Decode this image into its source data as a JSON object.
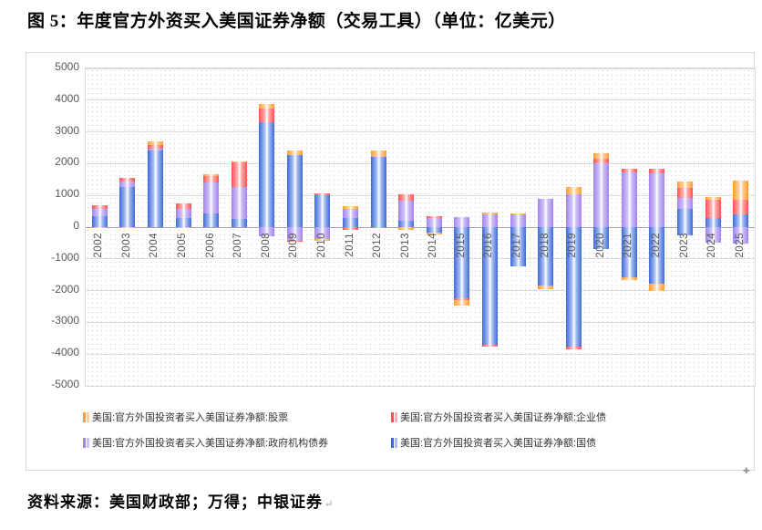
{
  "title": "图 5：年度官方外资买入美国证券净额（交易工具）（单位：亿美元）",
  "source": "资料来源：美国财政部；万得；中银证券",
  "source_mark": "↵",
  "corner_handle_glyph": "✚",
  "chart_data": {
    "type": "bar",
    "stacked": true,
    "unit": "亿美元",
    "title": "",
    "xlabel": "",
    "ylabel": "",
    "ylim": [
      -5000,
      5000
    ],
    "yticks": [
      5000,
      4000,
      3000,
      2000,
      1000,
      0,
      -1000,
      -2000,
      -3000,
      -4000,
      -5000
    ],
    "grid": true,
    "legend_position": "bottom",
    "categories": [
      2002,
      2003,
      2004,
      2005,
      2006,
      2007,
      2008,
      2009,
      2010,
      2011,
      2012,
      2013,
      2014,
      2015,
      2016,
      2017,
      2018,
      2019,
      2020,
      2021,
      2022,
      2023,
      2024,
      2025
    ],
    "series": [
      {
        "name": "美国:官方外国投资者买入美国证券净额:股票",
        "key": "equity",
        "color": "#FF9E2C",
        "light": "#FFD09A",
        "values": [
          -20,
          -20,
          120,
          -20,
          60,
          30,
          145,
          145,
          -50,
          80,
          210,
          -100,
          -70,
          -180,
          70,
          20,
          -115,
          215,
          170,
          -95,
          -220,
          220,
          95,
          615
        ]
      },
      {
        "name": "美国:官方外国投资者买入美国证券净额:企业债",
        "key": "corporate",
        "color": "#FF5050",
        "light": "#FFADAD",
        "values": [
          115,
          100,
          130,
          175,
          200,
          765,
          430,
          -30,
          50,
          -80,
          -40,
          210,
          70,
          -50,
          -50,
          0,
          0,
          -70,
          145,
          115,
          145,
          310,
          555,
          440
        ]
      },
      {
        "name": "美国:官方外国投资者买入美国证券净额:政府机构债券",
        "key": "agency",
        "color": "#A284EE",
        "light": "#D0C2F7",
        "values": [
          240,
          190,
          60,
          300,
          960,
          1025,
          -300,
          -420,
          -370,
          300,
          0,
          625,
          280,
          320,
          390,
          410,
          890,
          1040,
          2020,
          1735,
          1685,
          340,
          -480,
          -530
        ]
      },
      {
        "name": "美国:官方外国投资者买入美国证券净额:国债",
        "key": "treasury",
        "color": "#3E68D8",
        "light": "#A9C0F2",
        "values": [
          345,
          1255,
          2400,
          280,
          440,
          250,
          3305,
          2270,
          1010,
          280,
          2215,
          200,
          -160,
          -2240,
          -3710,
          -1240,
          -1830,
          -3775,
          -690,
          -1570,
          -1780,
          580,
          300,
          410
        ]
      }
    ],
    "extra_segments": [
      {
        "year": 2023,
        "series_key": "treasury",
        "value": -250
      }
    ],
    "stack_order_bottom_to_top": [
      "treasury",
      "agency",
      "corporate",
      "equity"
    ],
    "legend_rows": [
      [
        "equity",
        "corporate"
      ],
      [
        "agency",
        "treasury"
      ]
    ]
  }
}
